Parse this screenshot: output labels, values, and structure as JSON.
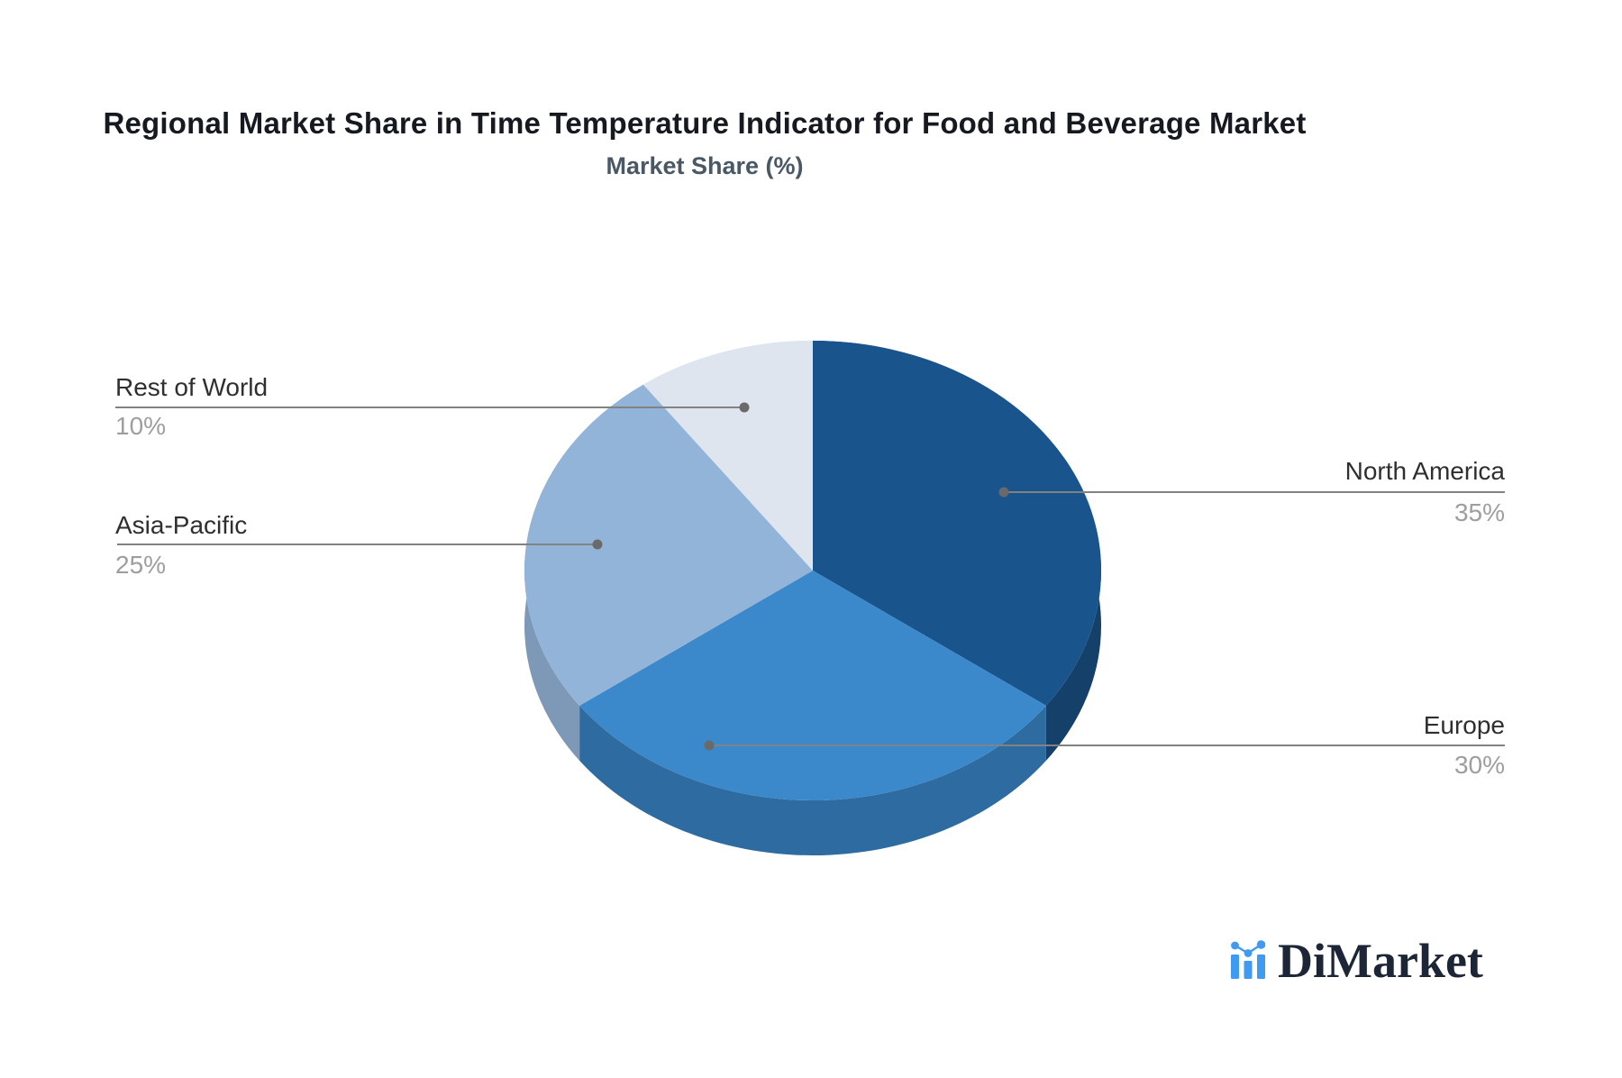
{
  "header": {
    "title": "Regional Market Share in Time Temperature Indicator for Food and Beverage Market",
    "subtitle": "Market Share (%)"
  },
  "chart_data": {
    "type": "pie",
    "style": "3d",
    "title": "Regional Market Share in Time Temperature Indicator for Food and Beverage Market",
    "subtitle": "Market Share (%)",
    "unit": "%",
    "start_angle_deg": 0,
    "direction": "clockwise",
    "slices": [
      {
        "label": "North America",
        "value": 35,
        "pct_label": "35%",
        "color": "#1a548c",
        "side_color": "#15406a",
        "label_side": "right"
      },
      {
        "label": "Europe",
        "value": 30,
        "pct_label": "30%",
        "color": "#3b88cb",
        "side_color": "#2d6ba1",
        "label_side": "right"
      },
      {
        "label": "Asia-Pacific",
        "value": 25,
        "pct_label": "25%",
        "color": "#93b4d9",
        "side_color": "#7e99b7",
        "label_side": "left"
      },
      {
        "label": "Rest of World",
        "value": 10,
        "pct_label": "10%",
        "color": "#dfe5ee",
        "side_color": "#c7d1df",
        "label_side": "left"
      }
    ],
    "leader_line_color": "#828282",
    "leader_dot_color": "#6a6a6a",
    "label_text_color": "#2f2f2f",
    "pct_text_color": "#9e9e9e"
  },
  "logo": {
    "text": "DiMarket",
    "icon": "bar-chart-trend-icon",
    "accent_color": "#3e9af2",
    "text_color": "#1c2637"
  }
}
